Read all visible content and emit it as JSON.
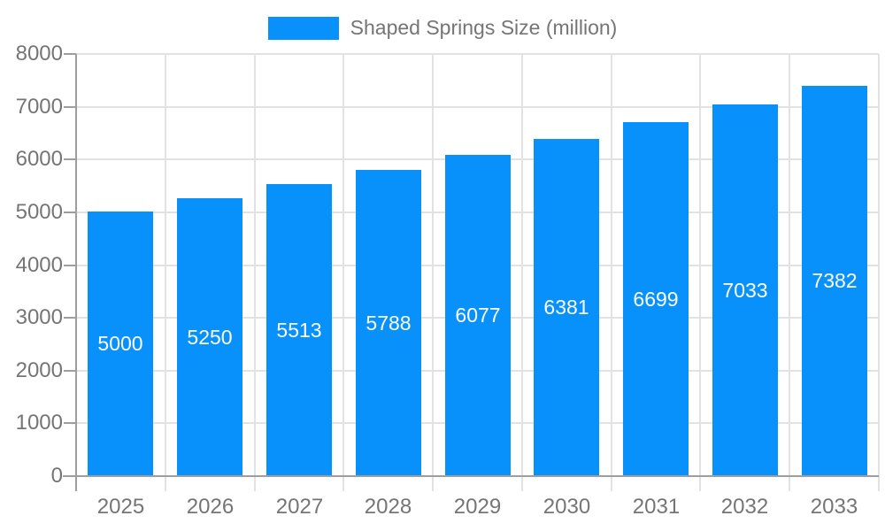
{
  "chart_data": {
    "type": "bar",
    "title": "Shaped Springs Size (million)",
    "categories": [
      "2025",
      "2026",
      "2027",
      "2028",
      "2029",
      "2030",
      "2031",
      "2032",
      "2033"
    ],
    "series": [
      {
        "name": "Shaped Springs Size (million)",
        "values": [
          5000,
          5250,
          5513,
          5788,
          6077,
          6381,
          6699,
          7033,
          7382
        ]
      }
    ],
    "value_labels": [
      "5000",
      "5250",
      "5513",
      "5788",
      "6077",
      "6381",
      "6699",
      "7033",
      "7382"
    ],
    "xlabel": "",
    "ylabel": "",
    "ylim": [
      0,
      8000
    ],
    "yticks": [
      0,
      1000,
      2000,
      3000,
      4000,
      5000,
      6000,
      7000,
      8000
    ],
    "grid": "on",
    "legend_position": "top-center",
    "colors": {
      "bar_fill": "#0891fa",
      "value_label_text": "#ffffff",
      "axis_text": "#757575",
      "legend_text": "#757575",
      "gridline": "#e2e2e2",
      "axis_line": "#9e9e9e",
      "background": "#ffffff"
    }
  }
}
